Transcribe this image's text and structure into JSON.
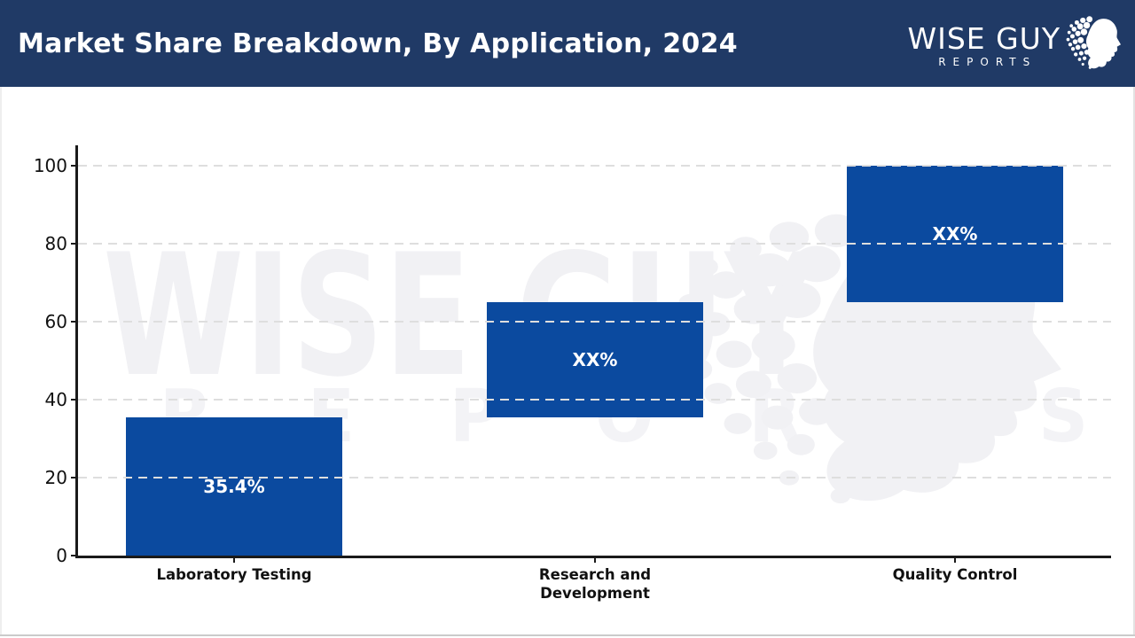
{
  "header": {
    "title": "Market Share Breakdown, By Application, 2024",
    "background_color": "#203a66",
    "logo": {
      "line1": "WISE GUY",
      "line2": "REPORTS"
    }
  },
  "watermark": {
    "line1": "WISE GUY",
    "line2": "REPORTS"
  },
  "chart_data": {
    "type": "bar",
    "variant": "floating-waterfall-breakdown",
    "title": "Market Share Breakdown, By Application, 2024",
    "categories": [
      "Laboratory Testing",
      "Research and Development",
      "Quality Control"
    ],
    "segments": [
      {
        "category": "Laboratory Testing",
        "start": 0,
        "end": 35.4,
        "label": "35.4%"
      },
      {
        "category": "Research and Development",
        "start": 35.4,
        "end": 65,
        "label": "XX%"
      },
      {
        "category": "Quality Control",
        "start": 65,
        "end": 100,
        "label": "XX%"
      }
    ],
    "xlabel": "",
    "ylabel": "",
    "ylim": [
      0,
      105
    ],
    "yticks": [
      0,
      20,
      40,
      60,
      80,
      100
    ],
    "ytick_labels": [
      "0",
      "20",
      "40",
      "60",
      "80",
      "100"
    ],
    "grid": "horizontal-dashed",
    "grid_color": "#dedede",
    "bar_color": "#0b4a9f",
    "bar_label_color": "#ffffff",
    "axis_color": "#1a1a1a",
    "plot_background": "#ffffff"
  },
  "footer": {
    "line_color": "#cbcbcb"
  }
}
